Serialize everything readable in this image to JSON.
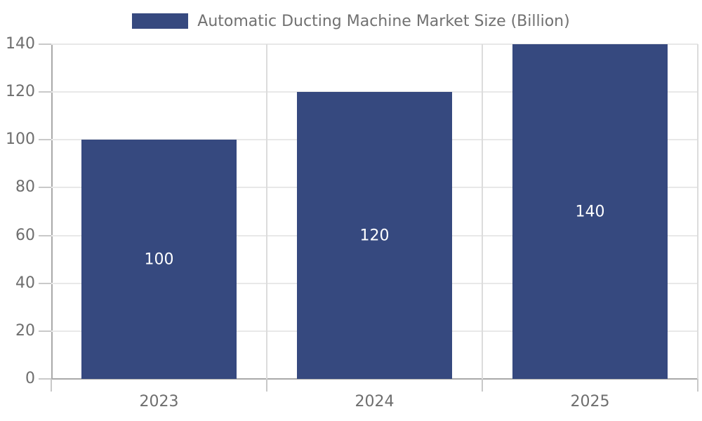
{
  "legend": {
    "label": "Automatic Ducting Machine Market Size (Billion)"
  },
  "chart_data": {
    "type": "bar",
    "title": "Automatic Ducting Machine Market Size (Billion)",
    "categories": [
      "2023",
      "2024",
      "2025"
    ],
    "values": [
      100,
      120,
      140
    ],
    "bar_labels": [
      "100",
      "120",
      "140"
    ],
    "xlabel": "",
    "ylabel": "",
    "ylim": [
      0,
      140
    ],
    "yticks": [
      0,
      20,
      40,
      60,
      80,
      100,
      120,
      140
    ],
    "grid": true,
    "legend_position": "top",
    "colors": {
      "bar": "#36497f",
      "bar_label": "#ffffff",
      "tick_text": "#6e6e6e",
      "legend_text": "#717171",
      "axis_line": "#a9a9a9",
      "grid_horizontal": "#e8e8e8",
      "grid_vertical": "#dcdcdc",
      "tick_mark": "#c9c9c9",
      "background": "#ffffff"
    }
  }
}
